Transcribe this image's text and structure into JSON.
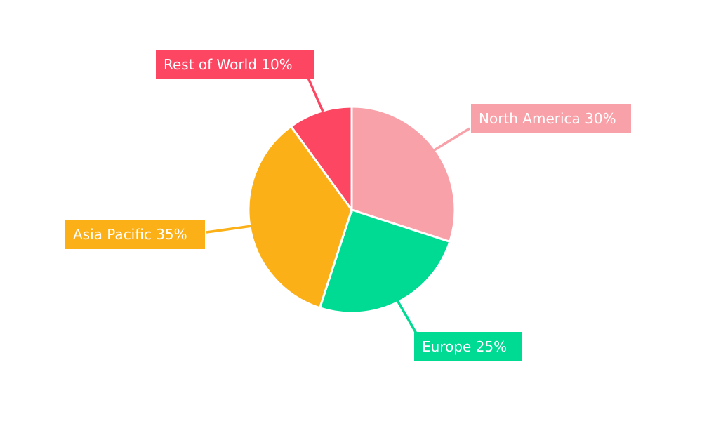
{
  "chart_data": {
    "type": "pie",
    "title": "",
    "labels": [
      "North America",
      "Europe",
      "Asia Pacific",
      "Rest of World"
    ],
    "values": [
      30,
      25,
      35,
      10
    ],
    "unit": "%",
    "label_texts": [
      "North America 30%",
      "Europe 25%",
      "Asia Pacific 35%",
      "Rest of World 10%"
    ],
    "colors": [
      "#F8A1A8",
      "#00DB93",
      "#FBB017",
      "#FC4662"
    ],
    "label_text_color": "#FFFFFF",
    "background": "#FFFFFF",
    "start_angle_deg": 0,
    "direction": "clockwise",
    "legend": "none",
    "donut": false
  }
}
